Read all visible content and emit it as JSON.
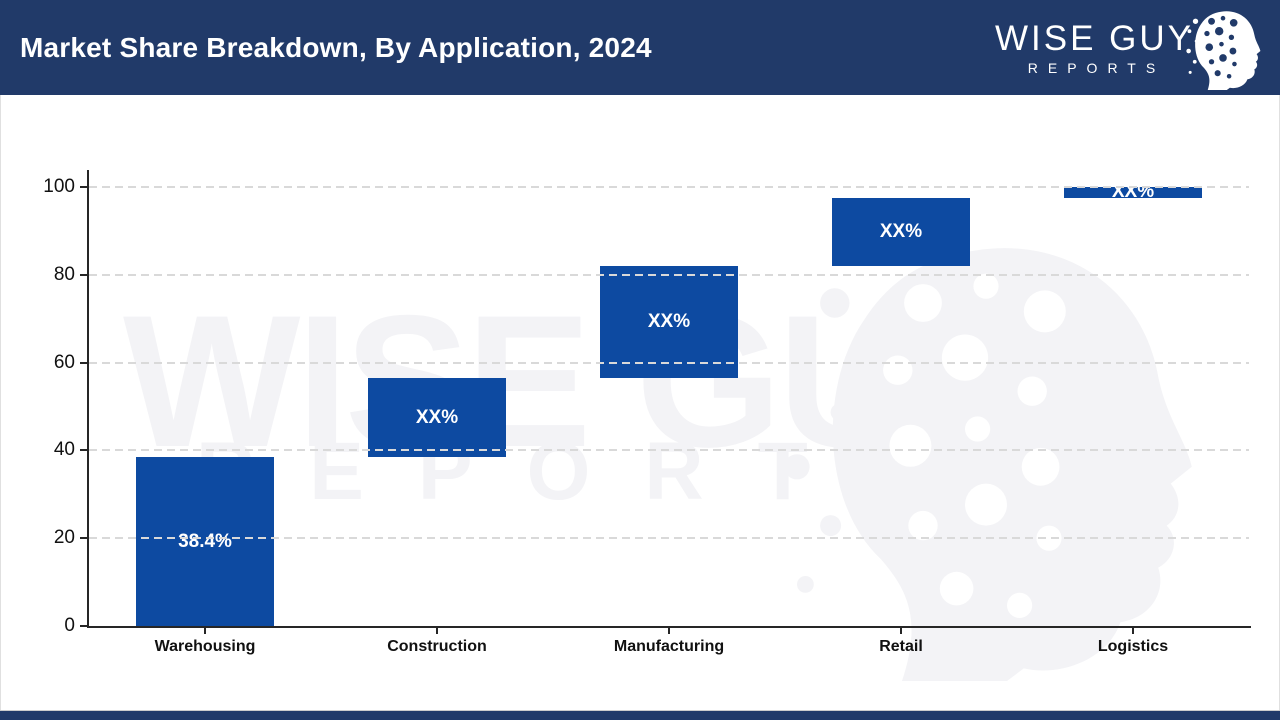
{
  "header": {
    "title": "Market Share Breakdown, By Application, 2024",
    "logo_line1": "WISE GUY",
    "logo_line2": "REPORTS"
  },
  "watermark": {
    "line1": "WISE GUY",
    "line2": "REPORTS"
  },
  "colors": {
    "header_bg": "#213a69",
    "bar_blue": "#0d4aa1",
    "gridline_gray": "#d9d9d9",
    "axis_dark": "#262626",
    "watermark_gray": "#f3f3f6"
  },
  "chart_data": {
    "type": "bar",
    "subtype": "waterfall",
    "title": "Market Share Breakdown, By Application, 2024",
    "xlabel": "",
    "ylabel": "",
    "ylim": [
      0,
      100
    ],
    "y_ticks": [
      0,
      20,
      40,
      60,
      80,
      100
    ],
    "grid": "horizontal dashed",
    "legend": "none",
    "categories": [
      "Warehousing",
      "Construction",
      "Manufacturing",
      "Retail",
      "Logistics"
    ],
    "segments": [
      {
        "category": "Warehousing",
        "start": 0,
        "end": 38.4,
        "label": "38.4%"
      },
      {
        "category": "Construction",
        "start": 38.4,
        "end": 56.5,
        "label": "XX%"
      },
      {
        "category": "Manufacturing",
        "start": 56.5,
        "end": 82.0,
        "label": "XX%"
      },
      {
        "category": "Retail",
        "start": 82.0,
        "end": 97.5,
        "label": "XX%"
      },
      {
        "category": "Logistics",
        "start": 97.5,
        "end": 100.0,
        "label": "XX%"
      }
    ]
  }
}
